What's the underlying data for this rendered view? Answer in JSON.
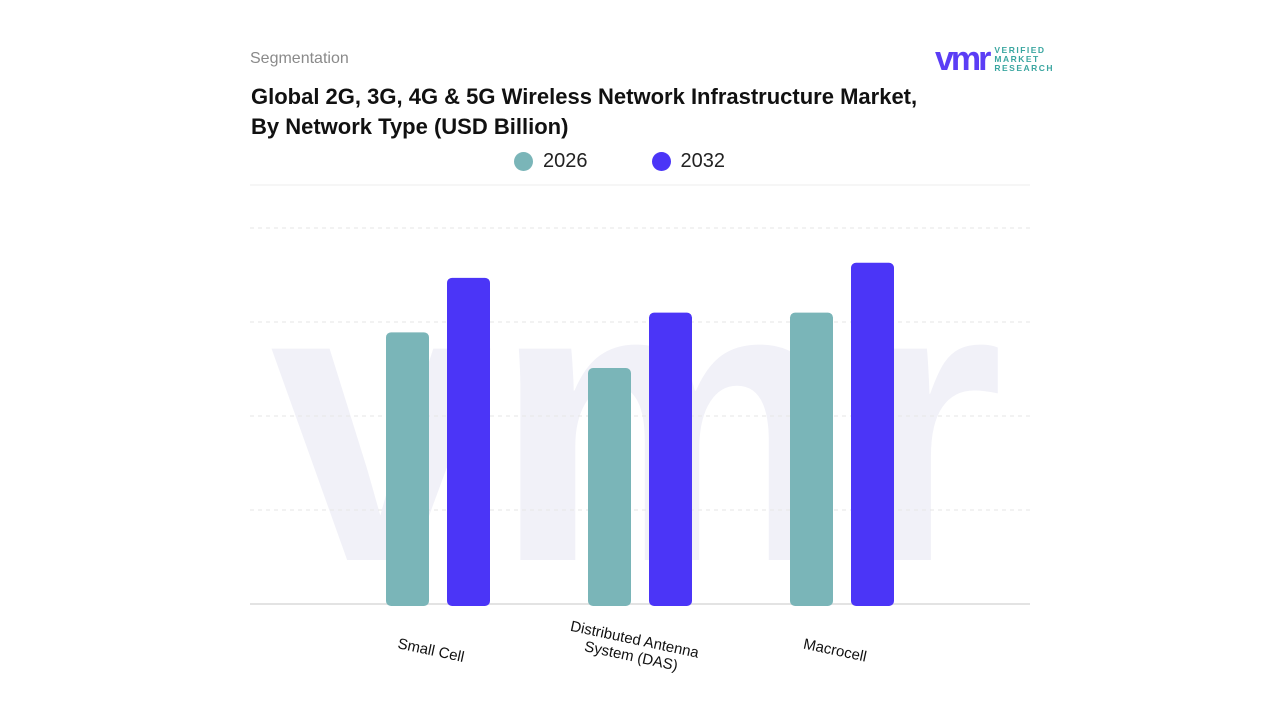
{
  "header": {
    "section": "Segmentation",
    "logo_text": "VERIFIED MARKET RESEARCH"
  },
  "chart_data": {
    "type": "bar",
    "title": "Global 2G, 3G, 4G & 5G Wireless Network Infrastructure Market, By Network Type (USD Billion)",
    "categories": [
      "Small Cell",
      "Distributed Antenna System (DAS)",
      "Macrocell"
    ],
    "series": [
      {
        "name": "2026",
        "color": "#7ab5b8",
        "values": [
          2.89,
          2.51,
          3.1
        ]
      },
      {
        "name": "2032",
        "color": "#4b35f7",
        "values": [
          3.47,
          3.1,
          3.63
        ]
      }
    ],
    "ylim": [
      0,
      4
    ],
    "y_tick_labels_shown": false,
    "grid": true,
    "legend": "top-center",
    "xlabel": "",
    "ylabel": ""
  }
}
